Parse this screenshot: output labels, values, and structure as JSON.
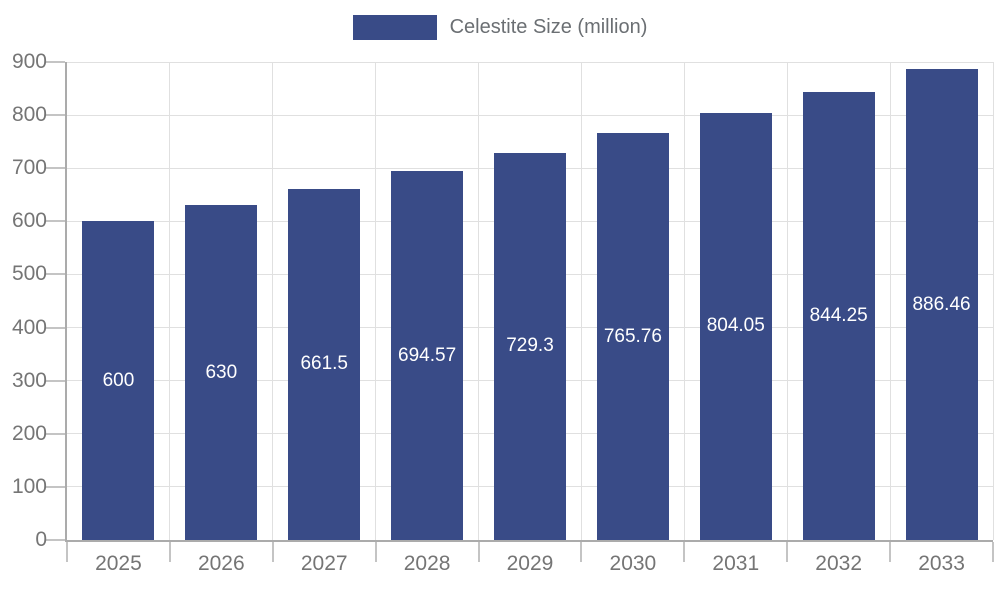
{
  "chart_data": {
    "type": "bar",
    "title": "",
    "legend": "Celestite Size (million)",
    "categories": [
      "2025",
      "2026",
      "2027",
      "2028",
      "2029",
      "2030",
      "2031",
      "2032",
      "2033"
    ],
    "values": [
      600,
      630,
      661.5,
      694.57,
      729.3,
      765.76,
      804.05,
      844.25,
      886.46
    ],
    "value_labels": [
      "600",
      "630",
      "661.5",
      "694.57",
      "729.3",
      "765.76",
      "804.05",
      "844.25",
      "886.46"
    ],
    "xlabel": "",
    "ylabel": "",
    "ylim": [
      0,
      900
    ],
    "yticks": [
      0,
      100,
      200,
      300,
      400,
      500,
      600,
      700,
      800,
      900
    ],
    "grid": true,
    "legend_position": "top",
    "colors": {
      "bar": "#394B87",
      "grid": "#e0e0e0",
      "axis": "#ababab",
      "tick": "#c4c4c4",
      "tick_label": "#757575",
      "legend_text": "#6b6f73",
      "bar_label": "#ffffff",
      "background": "#ffffff"
    }
  }
}
